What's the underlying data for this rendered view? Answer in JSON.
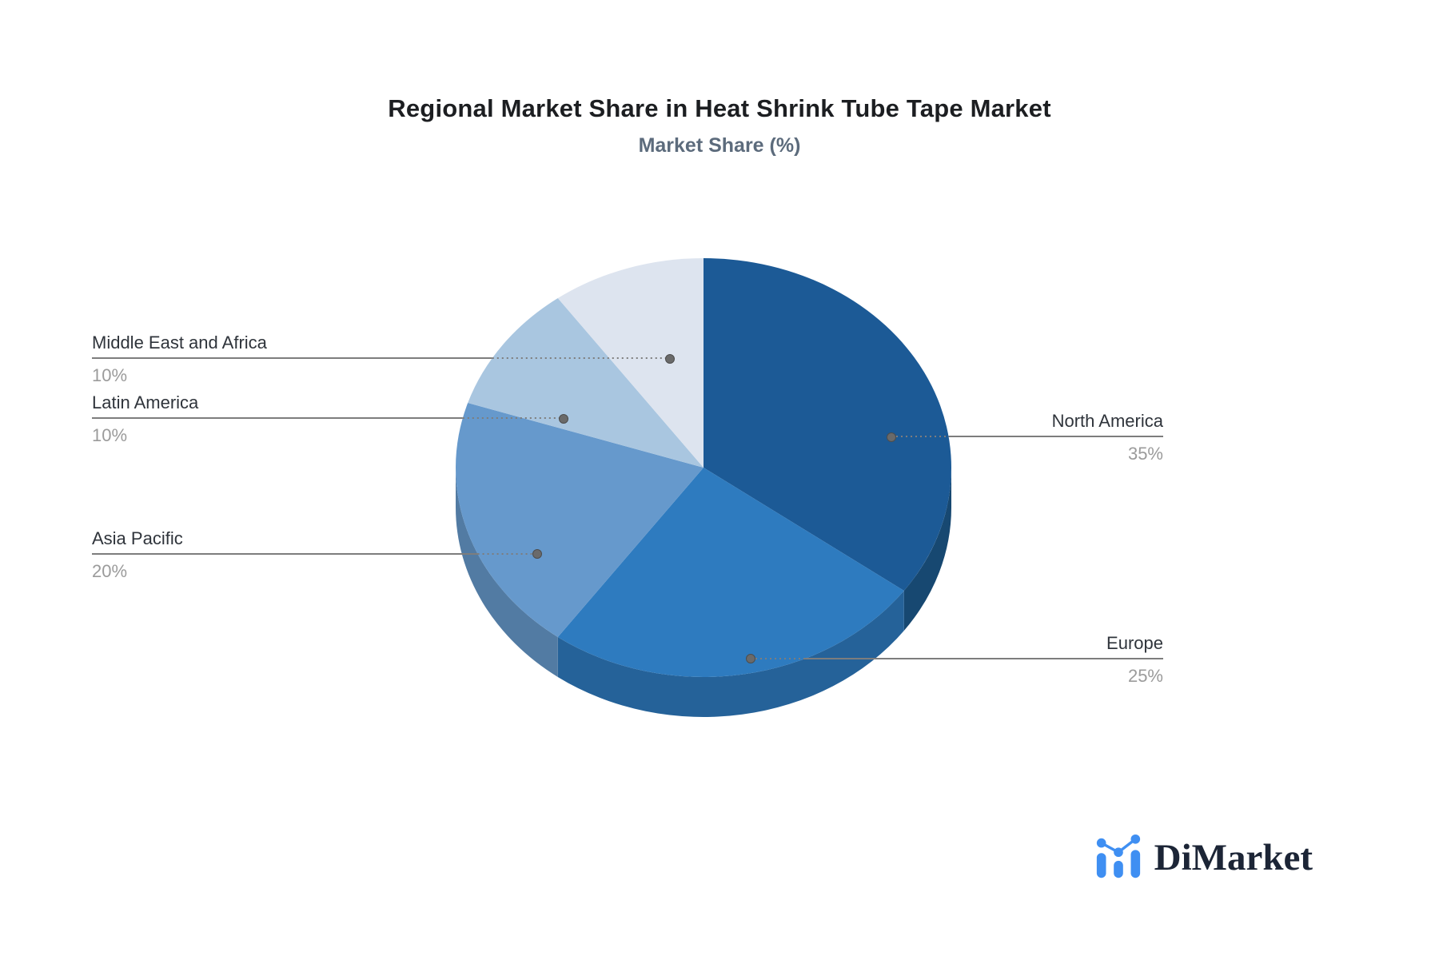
{
  "title": "Regional Market Share in Heat Shrink Tube Tape Market",
  "subtitle": "Market Share (%)",
  "logo": {
    "text": "DiMarket",
    "icon": "bar-chart-icon"
  },
  "chart_data": {
    "type": "pie",
    "title": "Regional Market Share in Heat Shrink Tube Tape Market",
    "subtitle": "Market Share (%)",
    "unit": "%",
    "effect": "3d",
    "direction": "clockwise",
    "start_angle_deg": 0,
    "legend_position": "none",
    "label_style": "leader-lines",
    "slices": [
      {
        "label": "North America",
        "value": 35,
        "display": "35%",
        "color": "#1C5A96",
        "side_color": "#174871",
        "label_side": "right"
      },
      {
        "label": "Europe",
        "value": 25,
        "display": "25%",
        "color": "#2E7BBF",
        "side_color": "#256299",
        "label_side": "right"
      },
      {
        "label": "Asia Pacific",
        "value": 20,
        "display": "20%",
        "color": "#6699CC",
        "side_color": "#527BA3",
        "label_side": "left"
      },
      {
        "label": "Latin America",
        "value": 10,
        "display": "10%",
        "color": "#A9C6E0",
        "side_color": "#879EB3",
        "label_side": "left"
      },
      {
        "label": "Middle East and Africa",
        "value": 10,
        "display": "10%",
        "color": "#DDE4EF",
        "side_color": "#B1B6BF",
        "label_side": "left"
      }
    ],
    "colors": {
      "label_text": "#2f343b",
      "value_text": "#9b9b9b",
      "leader_line": "#7d7d7d",
      "logo_icon": "#3F8FF2",
      "logo_text": "#1c2536"
    }
  }
}
